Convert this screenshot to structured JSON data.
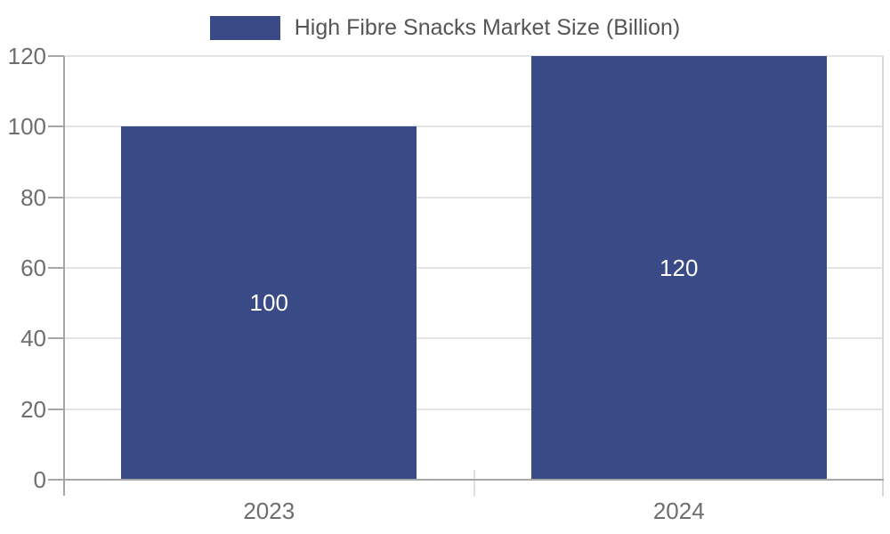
{
  "legend": {
    "label": "High Fibre Snacks Market Size (Billion)"
  },
  "colors": {
    "bar": "#3a4a87",
    "grid": "#e4e4e4",
    "axis": "#a6a6a6",
    "boundary_tick": "#e0e0e0",
    "right_border": "#d9d9d9",
    "tick_label": "#6e6e6e",
    "legend_text": "#555555",
    "bar_label": "#ffffff",
    "background": "#ffffff"
  },
  "chart_data": {
    "type": "bar",
    "title": "High Fibre Snacks Market Size (Billion)",
    "categories": [
      "2023",
      "2024"
    ],
    "values": [
      100,
      120
    ],
    "bar_labels": [
      "100",
      "120"
    ],
    "series": [
      {
        "name": "High Fibre Snacks Market Size (Billion)",
        "values": [
          100,
          120
        ]
      }
    ],
    "xlabel": "",
    "ylabel": "",
    "ylim": [
      0,
      120
    ],
    "yticks": [
      0,
      20,
      40,
      60,
      80,
      100,
      120
    ],
    "grid": true,
    "legend_position": "top-center",
    "bar_label_position": "inside-center"
  }
}
